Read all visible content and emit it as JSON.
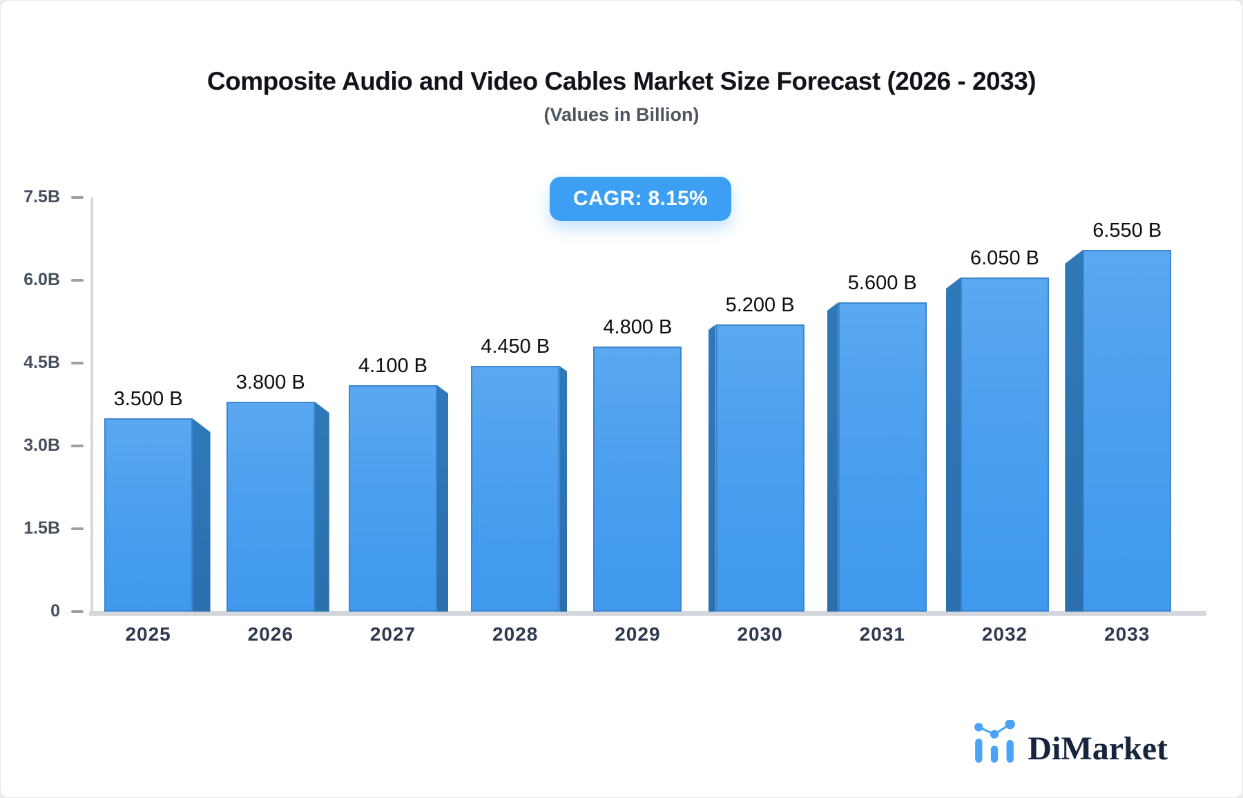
{
  "header": {
    "title": "Composite Audio and Video Cables Market Size Forecast (2026 - 2033)",
    "subtitle": "(Values in Billion)"
  },
  "badge": {
    "label": "CAGR: 8.15%"
  },
  "chart_data": {
    "type": "bar",
    "title": "Composite Audio and Video Cables Market Size Forecast (2026 - 2033)",
    "subtitle": "(Values in Billion)",
    "unit": "Billion",
    "categories": [
      "2025",
      "2026",
      "2027",
      "2028",
      "2029",
      "2030",
      "2031",
      "2032",
      "2033"
    ],
    "values": [
      3.5,
      3.8,
      4.1,
      4.45,
      4.8,
      5.2,
      5.6,
      6.05,
      6.55
    ],
    "value_labels": [
      "3.500 B",
      "3.800 B",
      "4.100 B",
      "4.450 B",
      "4.800 B",
      "5.200 B",
      "5.600 B",
      "6.050 B",
      "6.550 B"
    ],
    "cagr": "8.15%",
    "ylim": [
      0,
      7.5
    ],
    "yticks": [
      {
        "value": 7.5,
        "label": "7.5B"
      },
      {
        "value": 6.0,
        "label": "6.0B"
      },
      {
        "value": 4.5,
        "label": "4.5B"
      },
      {
        "value": 3.0,
        "label": "3.0B"
      },
      {
        "value": 1.5,
        "label": "1.5B"
      },
      {
        "value": 0,
        "label": "0"
      }
    ],
    "grid": false,
    "legend": null,
    "colors": {
      "bar_face_top": "#5ba8f0",
      "bar_face_bottom": "#3f99ed",
      "bar_side": "#2d74b4",
      "bar_border": "#3b86cf",
      "badge_blue": "#3d9ff3",
      "axis_gray": "#d3d6da",
      "label_dark": "#0b0e12"
    }
  },
  "logo": {
    "text": "DiMarket",
    "icon": "bar-chart-logo-icon",
    "icon_color": "#4aa3f7",
    "text_color": "#17243d"
  }
}
